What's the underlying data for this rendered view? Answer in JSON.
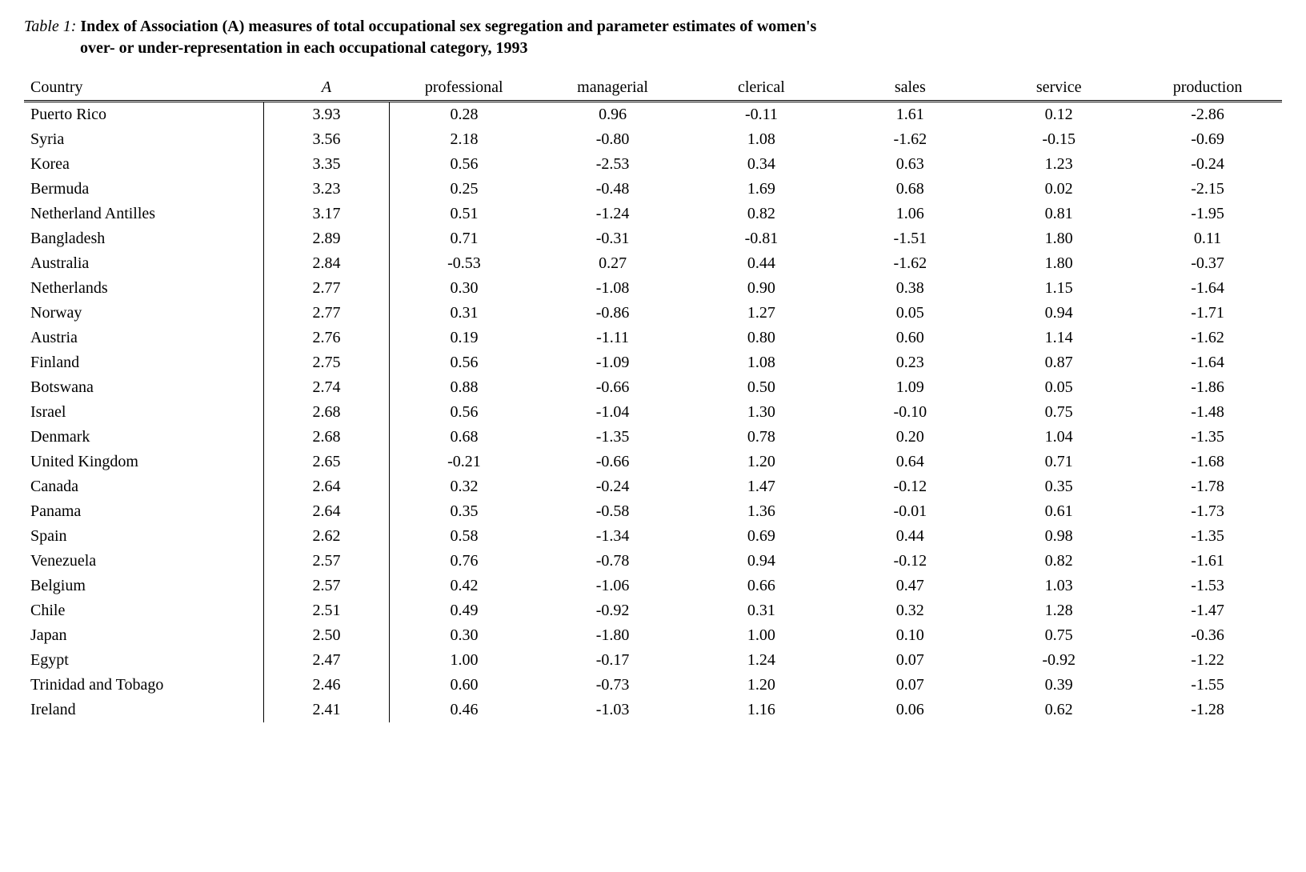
{
  "title": {
    "prefix": "Table 1:",
    "line1": "Index of Association (A) measures of total occupational sex segregation and parameter estimates of women's",
    "line2": "over- or under-representation in each occupational category, 1993"
  },
  "table": {
    "columns": {
      "country": "Country",
      "a": "A",
      "professional": "professional",
      "managerial": "managerial",
      "clerical": "clerical",
      "sales": "sales",
      "service": "service",
      "production": "production"
    },
    "rows": [
      {
        "country": "Puerto Rico",
        "a": "3.93",
        "professional": "0.28",
        "managerial": "0.96",
        "clerical": "-0.11",
        "sales": "1.61",
        "service": "0.12",
        "production": "-2.86"
      },
      {
        "country": "Syria",
        "a": "3.56",
        "professional": "2.18",
        "managerial": "-0.80",
        "clerical": "1.08",
        "sales": "-1.62",
        "service": "-0.15",
        "production": "-0.69"
      },
      {
        "country": "Korea",
        "a": "3.35",
        "professional": "0.56",
        "managerial": "-2.53",
        "clerical": "0.34",
        "sales": "0.63",
        "service": "1.23",
        "production": "-0.24"
      },
      {
        "country": "Bermuda",
        "a": "3.23",
        "professional": "0.25",
        "managerial": "-0.48",
        "clerical": "1.69",
        "sales": "0.68",
        "service": "0.02",
        "production": "-2.15"
      },
      {
        "country": "Netherland Antilles",
        "a": "3.17",
        "professional": "0.51",
        "managerial": "-1.24",
        "clerical": "0.82",
        "sales": "1.06",
        "service": "0.81",
        "production": "-1.95"
      },
      {
        "country": "Bangladesh",
        "a": "2.89",
        "professional": "0.71",
        "managerial": "-0.31",
        "clerical": "-0.81",
        "sales": "-1.51",
        "service": "1.80",
        "production": "0.11"
      },
      {
        "country": "Australia",
        "a": "2.84",
        "professional": "-0.53",
        "managerial": "0.27",
        "clerical": "0.44",
        "sales": "-1.62",
        "service": "1.80",
        "production": "-0.37"
      },
      {
        "country": "Netherlands",
        "a": "2.77",
        "professional": "0.30",
        "managerial": "-1.08",
        "clerical": "0.90",
        "sales": "0.38",
        "service": "1.15",
        "production": "-1.64"
      },
      {
        "country": "Norway",
        "a": "2.77",
        "professional": "0.31",
        "managerial": "-0.86",
        "clerical": "1.27",
        "sales": "0.05",
        "service": "0.94",
        "production": "-1.71"
      },
      {
        "country": "Austria",
        "a": "2.76",
        "professional": "0.19",
        "managerial": "-1.11",
        "clerical": "0.80",
        "sales": "0.60",
        "service": "1.14",
        "production": "-1.62"
      },
      {
        "country": "Finland",
        "a": "2.75",
        "professional": "0.56",
        "managerial": "-1.09",
        "clerical": "1.08",
        "sales": "0.23",
        "service": "0.87",
        "production": "-1.64"
      },
      {
        "country": "Botswana",
        "a": "2.74",
        "professional": "0.88",
        "managerial": "-0.66",
        "clerical": "0.50",
        "sales": "1.09",
        "service": "0.05",
        "production": "-1.86"
      },
      {
        "country": "Israel",
        "a": "2.68",
        "professional": "0.56",
        "managerial": "-1.04",
        "clerical": "1.30",
        "sales": "-0.10",
        "service": "0.75",
        "production": "-1.48"
      },
      {
        "country": "Denmark",
        "a": "2.68",
        "professional": "0.68",
        "managerial": "-1.35",
        "clerical": "0.78",
        "sales": "0.20",
        "service": "1.04",
        "production": "-1.35"
      },
      {
        "country": "United Kingdom",
        "a": "2.65",
        "professional": "-0.21",
        "managerial": "-0.66",
        "clerical": "1.20",
        "sales": "0.64",
        "service": "0.71",
        "production": "-1.68"
      },
      {
        "country": "Canada",
        "a": "2.64",
        "professional": "0.32",
        "managerial": "-0.24",
        "clerical": "1.47",
        "sales": "-0.12",
        "service": "0.35",
        "production": "-1.78"
      },
      {
        "country": "Panama",
        "a": "2.64",
        "professional": "0.35",
        "managerial": "-0.58",
        "clerical": "1.36",
        "sales": "-0.01",
        "service": "0.61",
        "production": "-1.73"
      },
      {
        "country": "Spain",
        "a": "2.62",
        "professional": "0.58",
        "managerial": "-1.34",
        "clerical": "0.69",
        "sales": "0.44",
        "service": "0.98",
        "production": "-1.35"
      },
      {
        "country": "Venezuela",
        "a": "2.57",
        "professional": "0.76",
        "managerial": "-0.78",
        "clerical": "0.94",
        "sales": "-0.12",
        "service": "0.82",
        "production": "-1.61"
      },
      {
        "country": "Belgium",
        "a": "2.57",
        "professional": "0.42",
        "managerial": "-1.06",
        "clerical": "0.66",
        "sales": "0.47",
        "service": "1.03",
        "production": "-1.53"
      },
      {
        "country": "Chile",
        "a": "2.51",
        "professional": "0.49",
        "managerial": "-0.92",
        "clerical": "0.31",
        "sales": "0.32",
        "service": "1.28",
        "production": "-1.47"
      },
      {
        "country": "Japan",
        "a": "2.50",
        "professional": "0.30",
        "managerial": "-1.80",
        "clerical": "1.00",
        "sales": "0.10",
        "service": "0.75",
        "production": "-0.36"
      },
      {
        "country": "Egypt",
        "a": "2.47",
        "professional": "1.00",
        "managerial": "-0.17",
        "clerical": "1.24",
        "sales": "0.07",
        "service": "-0.92",
        "production": "-1.22"
      },
      {
        "country": "Trinidad and Tobago",
        "a": "2.46",
        "professional": "0.60",
        "managerial": "-0.73",
        "clerical": "1.20",
        "sales": "0.07",
        "service": "0.39",
        "production": "-1.55"
      },
      {
        "country": "Ireland",
        "a": "2.41",
        "professional": "0.46",
        "managerial": "-1.03",
        "clerical": "1.16",
        "sales": "0.06",
        "service": "0.62",
        "production": "-1.28"
      }
    ]
  }
}
